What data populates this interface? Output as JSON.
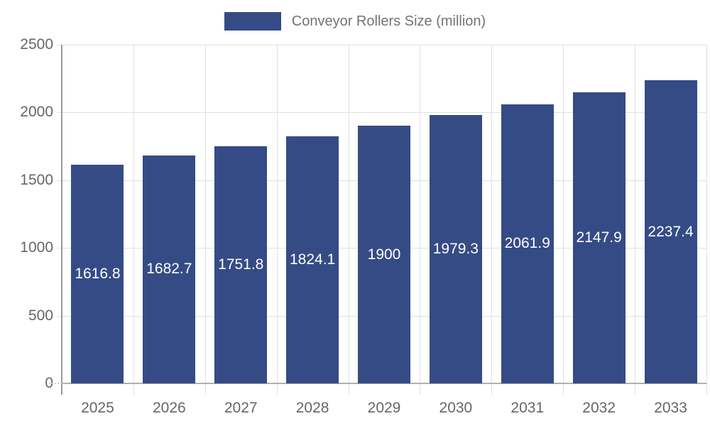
{
  "chart_data": {
    "type": "bar",
    "title": "Conveyor Rollers Size (million)",
    "categories": [
      "2025",
      "2026",
      "2027",
      "2028",
      "2029",
      "2030",
      "2031",
      "2032",
      "2033"
    ],
    "values": [
      1616.8,
      1682.7,
      1751.8,
      1824.1,
      1900,
      1979.3,
      2061.9,
      2147.9,
      2237.4
    ],
    "series": [
      {
        "name": "Conveyor Rollers Size (million)",
        "values": [
          1616.8,
          1682.7,
          1751.8,
          1824.1,
          1900,
          1979.3,
          2061.9,
          2147.9,
          2237.4
        ]
      }
    ],
    "xlabel": "",
    "ylabel": "",
    "ylim": [
      0,
      2500
    ],
    "yticks": [
      0,
      500,
      1000,
      1500,
      2000,
      2500
    ],
    "legend_position": "top-center",
    "grid": true,
    "value_label_placement": "inside-center",
    "colors": {
      "bar": "#354B85",
      "value_label": "#ffffff",
      "axis_text": "#666666",
      "legend_text": "#737373",
      "gridline": "#e0e0e0",
      "y_axis_line": "#9a9a9a",
      "x_axis_line": "#b0b0b0"
    }
  }
}
